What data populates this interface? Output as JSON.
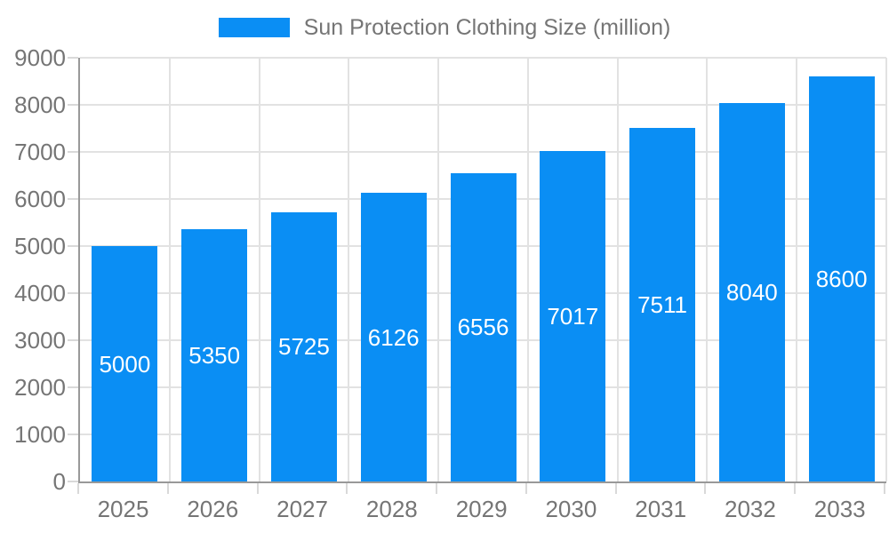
{
  "legend": {
    "label": "Sun Protection Clothing Size (million)"
  },
  "colors": {
    "bar": "#0a8ef4",
    "grid": "#e2e2e2",
    "axis": "#999999",
    "tick": "#d9d9d9",
    "label_text": "#757575",
    "value_text": "#ffffff",
    "background": "#ffffff"
  },
  "chart_data": {
    "type": "bar",
    "title": "Sun Protection Clothing Size (million)",
    "series_name": "Sun Protection Clothing Size (million)",
    "categories": [
      "2025",
      "2026",
      "2027",
      "2028",
      "2029",
      "2030",
      "2031",
      "2032",
      "2033"
    ],
    "values": [
      5000,
      5350,
      5725,
      6126,
      6556,
      7017,
      7511,
      8040,
      8600
    ],
    "xlabel": "",
    "ylabel": "",
    "ylim": [
      0,
      9000
    ],
    "ytick_step": 1000,
    "yticks": [
      0,
      1000,
      2000,
      3000,
      4000,
      5000,
      6000,
      7000,
      8000,
      9000
    ],
    "grid": "both",
    "legend_position": "top-center",
    "value_label_position": "inside-center"
  }
}
